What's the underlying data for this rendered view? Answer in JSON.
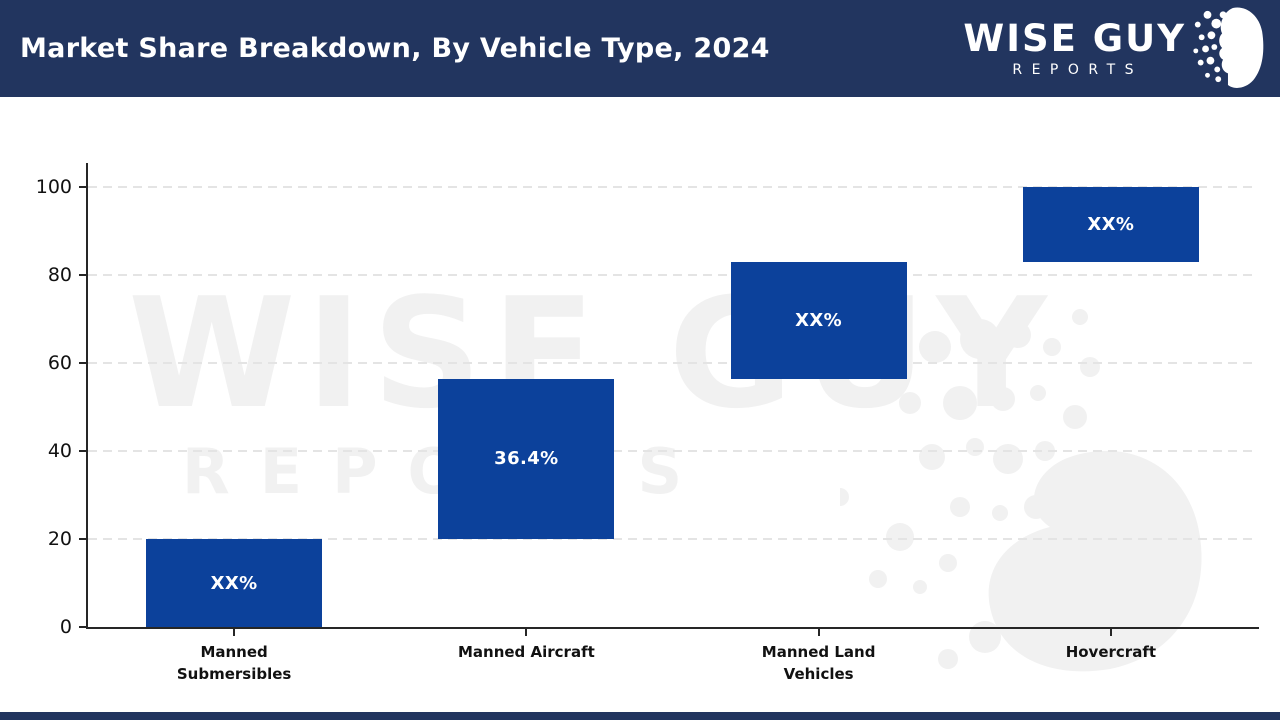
{
  "header": {
    "title": "Market Share Breakdown, By Vehicle Type, 2024",
    "logo": {
      "line1": "WISE GUY",
      "line2": "REPORTS"
    }
  },
  "watermark": {
    "line1": "WISE GUY",
    "line2": "REPORTS"
  },
  "chart_data": {
    "type": "bar",
    "subtype": "waterfall",
    "title": "Market Share Breakdown, By Vehicle Type, 2024",
    "categories": [
      "Manned\nSubmersibles",
      "Manned Aircraft",
      "Manned Land\nVehicles",
      "Hovercraft"
    ],
    "segments": [
      {
        "category": "Manned Submersibles",
        "start": 0,
        "end": 20,
        "label": "XX%"
      },
      {
        "category": "Manned Aircraft",
        "start": 20,
        "end": 56.4,
        "label": "36.4%"
      },
      {
        "category": "Manned Land Vehicles",
        "start": 56.4,
        "end": 83,
        "label": "XX%"
      },
      {
        "category": "Hovercraft",
        "start": 83,
        "end": 100,
        "label": "XX%"
      }
    ],
    "yticks": [
      0,
      20,
      40,
      60,
      80,
      100
    ],
    "ylim": [
      0,
      105
    ],
    "xlabel": "",
    "ylabel": "",
    "grid": "horizontal-dashed",
    "legend": "none",
    "bar_color": "#0c419b",
    "bar_label_color": "#ffffff"
  },
  "colors": {
    "header_bg": "#22355f",
    "footer_bg": "#22355f",
    "bar": "#0c419b",
    "axis": "#262626",
    "grid": "#e4e4e4",
    "watermark": "#f1f1f1",
    "title_text": "#ffffff"
  }
}
